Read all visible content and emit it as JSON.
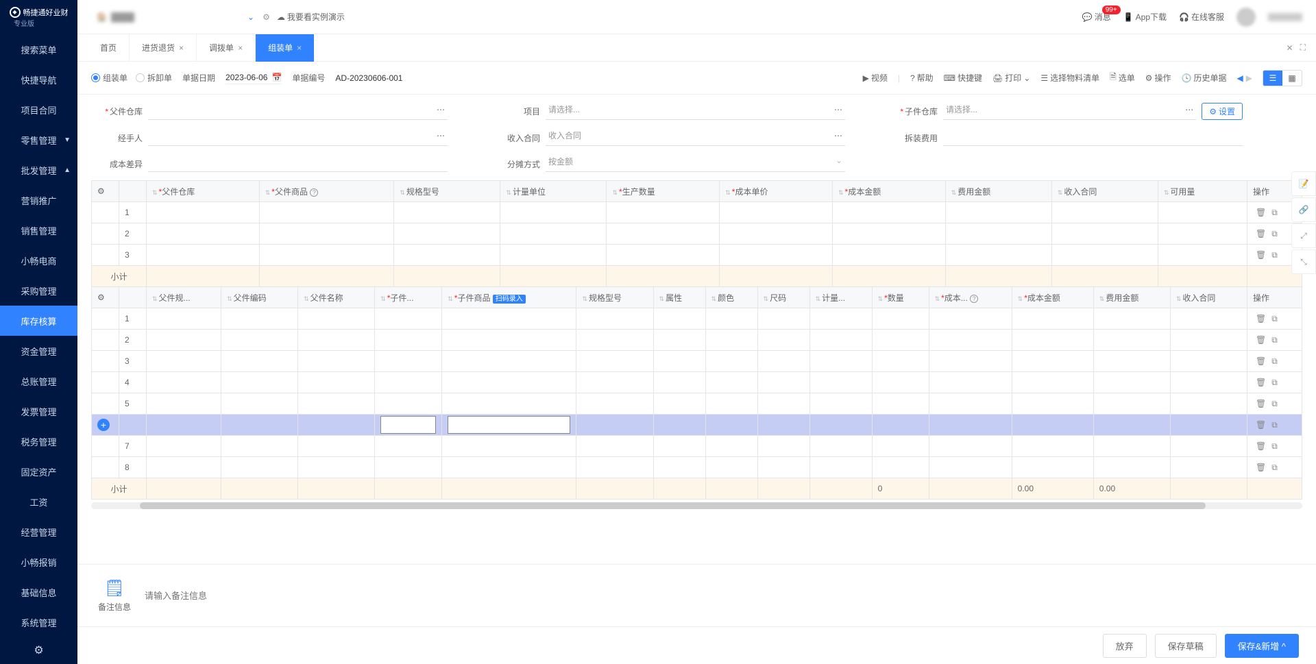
{
  "brand": {
    "name": "畅捷通好业财",
    "edition": "专业版"
  },
  "topbar": {
    "org_placeholder": "████",
    "demo_link": "我要看实例演示",
    "msg": "消息",
    "msg_badge": "99+",
    "download": "App下载",
    "service": "在线客服"
  },
  "sidebar": {
    "items": [
      {
        "label": "搜索菜单"
      },
      {
        "label": "快捷导航"
      },
      {
        "label": "项目合同"
      },
      {
        "label": "零售管理",
        "arrow": "▼"
      },
      {
        "label": "批发管理",
        "arrow": "▲"
      },
      {
        "label": "营销推广"
      },
      {
        "label": "销售管理"
      },
      {
        "label": "小畅电商"
      },
      {
        "label": "采购管理"
      },
      {
        "label": "库存核算",
        "active": true
      },
      {
        "label": "资金管理"
      },
      {
        "label": "总账管理"
      },
      {
        "label": "发票管理"
      },
      {
        "label": "税务管理"
      },
      {
        "label": "固定资产"
      },
      {
        "label": "工资"
      },
      {
        "label": "经营管理"
      },
      {
        "label": "小畅报销"
      },
      {
        "label": "基础信息"
      },
      {
        "label": "系统管理"
      }
    ]
  },
  "tabs": [
    {
      "label": "首页",
      "closable": false
    },
    {
      "label": "进货退货",
      "closable": true
    },
    {
      "label": "调拨单",
      "closable": true
    },
    {
      "label": "组装单",
      "closable": true,
      "active": true
    }
  ],
  "doc": {
    "radio_assemble": "组装单",
    "radio_dismantle": "拆卸单",
    "date_label": "单据日期",
    "date_value": "2023-06-06",
    "no_label": "单据编号",
    "no_value": "AD-20230606-001",
    "toolbar": {
      "video": "视频",
      "help": "帮助",
      "hotkey": "快捷键",
      "print": "打印",
      "select_bom": "选择物料清单",
      "select_doc": "选单",
      "ops": "操作",
      "history": "历史单据"
    }
  },
  "form": {
    "parent_wh": "父件仓库",
    "project": "项目",
    "child_wh": "子件仓库",
    "select_ph": "请选择...",
    "settings": "设置",
    "handler": "经手人",
    "income_contract": "收入合同",
    "income_ph": "收入合同",
    "assembly_fee": "拆装费用",
    "cost_variance": "成本差异",
    "allocation": "分摊方式",
    "allocation_val": "按金额"
  },
  "table1": {
    "cols": [
      "父件仓库",
      "父件商品",
      "规格型号",
      "计量单位",
      "生产数量",
      "成本单价",
      "成本金额",
      "费用金额",
      "收入合同",
      "可用量",
      "操作"
    ],
    "rows": [
      1,
      2,
      3
    ],
    "subtotal": "小计"
  },
  "table2": {
    "cols": [
      "父件规...",
      "父件编码",
      "父件名称",
      "子件...",
      "子件商品",
      "规格型号",
      "属性",
      "颜色",
      "尺码",
      "计量...",
      "数量",
      "成本...",
      "成本金额",
      "费用金额",
      "收入合同",
      "操作"
    ],
    "scan_badge": "扫码录入",
    "rows": [
      1,
      2,
      3,
      4,
      5,
      7,
      8
    ],
    "subtotal": "小计",
    "totals": {
      "qty": "0",
      "cost_amt": "0.00",
      "fee_amt": "0.00"
    }
  },
  "remarks": {
    "title": "备注信息",
    "placeholder": "请输入备注信息"
  },
  "footer": {
    "discard": "放弃",
    "draft": "保存草稿",
    "save_new": "保存&新增"
  }
}
